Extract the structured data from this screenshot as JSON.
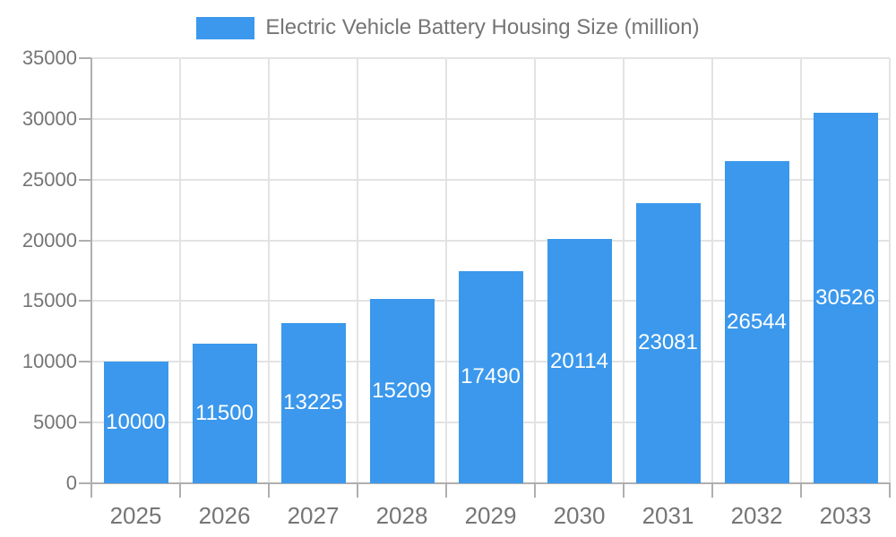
{
  "chart_data": {
    "type": "bar",
    "title": "Electric Vehicle Battery Housing Size (million)",
    "categories": [
      "2025",
      "2026",
      "2027",
      "2028",
      "2029",
      "2030",
      "2031",
      "2032",
      "2033"
    ],
    "values": [
      10000,
      11500,
      13225,
      15209,
      17490,
      20114,
      23081,
      26544,
      30526
    ],
    "value_labels": [
      "10000",
      "11500",
      "13225",
      "15209",
      "17490",
      "20114",
      "23081",
      "26544",
      "30526"
    ],
    "xlabel": "",
    "ylabel": "",
    "ylim": [
      0,
      35000
    ],
    "yticks": [
      0,
      5000,
      10000,
      15000,
      20000,
      25000,
      30000,
      35000
    ],
    "grid": true,
    "legend_position": "top-center",
    "colors": {
      "bar": "#3B98EC",
      "axis_text": "#757575",
      "legend_text": "#757575",
      "gridline": "#E3E3E3",
      "axis_line": "#AFAFAF",
      "value_label_text": "#FFFFFF",
      "background": "#FFFFFF"
    }
  }
}
